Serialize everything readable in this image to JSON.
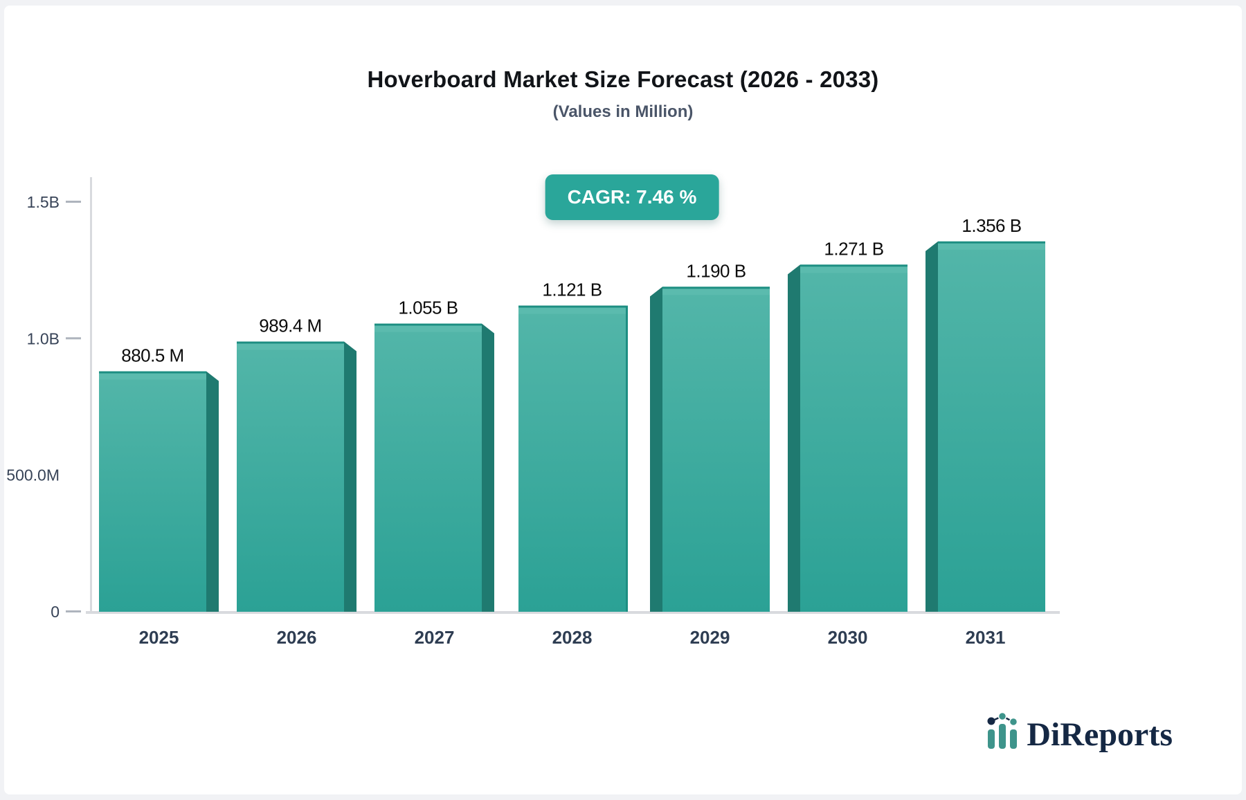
{
  "page": {
    "background_color": "#f1f2f5",
    "card_color": "#ffffff"
  },
  "header": {
    "title": "Hoverboard Market Size Forecast (2026 - 2033)",
    "subtitle": "(Values in Million)"
  },
  "badge": {
    "label": "CAGR: 7.46 %"
  },
  "chart_data": {
    "type": "bar",
    "title": "Hoverboard Market Size Forecast (2026 - 2033)",
    "subtitle": "(Values in Million)",
    "categories": [
      "2025",
      "2026",
      "2027",
      "2028",
      "2029",
      "2030",
      "2031"
    ],
    "values_million": [
      880.5,
      989.4,
      1055,
      1121,
      1190,
      1271,
      1356
    ],
    "value_labels": [
      "880.5 M",
      "989.4 M",
      "1.055 B",
      "1.121 B",
      "1.190 B",
      "1.271 B",
      "1.356 B"
    ],
    "cagr_percent": 7.46,
    "ylim_million": [
      0,
      1500
    ],
    "y_ticks": [
      {
        "label": "1.5B",
        "value_million": 1500,
        "dash": true
      },
      {
        "label": "1.0B",
        "value_million": 1000,
        "dash": true
      },
      {
        "label": "500.0M",
        "value_million": 500,
        "dash": false
      },
      {
        "label": "0",
        "value_million": 0,
        "dash": true
      }
    ],
    "grid": false,
    "legend": "none",
    "colors": {
      "bar_face_top": "#53b6a9",
      "bar_face_bottom": "#2ba195",
      "bar_top_edge": "#1d8e82",
      "bar_top_band": "#5dbcaf",
      "bar_side": "#1f7a70",
      "axis_line": "#d8dade",
      "tick_dash": "#aeb4bd",
      "tick_text": "#374357",
      "x_label_text": "#2e3d52",
      "value_text": "#0c0c0c",
      "badge_bg": "#2aa69a"
    }
  },
  "logo": {
    "text": "DiReports",
    "icon": "mini-bar-line-chart-icon",
    "icon_bar_color": "#3e948b",
    "text_color": "#152844"
  }
}
